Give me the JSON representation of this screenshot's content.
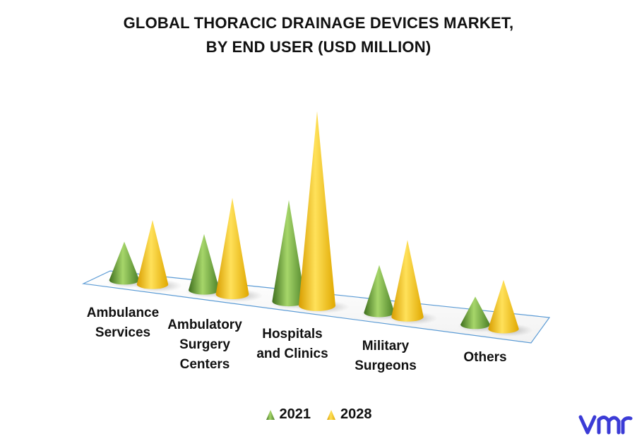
{
  "title_lines": [
    "GLOBAL THORACIC DRAINAGE DEVICES MARKET,",
    "BY END USER (USD MILLION)"
  ],
  "chart_data": {
    "type": "bar",
    "style": "3d-cones",
    "title": "GLOBAL THORACIC DRAINAGE DEVICES MARKET, BY END USER (USD MILLION)",
    "categories": [
      [
        "Ambulance",
        "Services"
      ],
      [
        "Ambulatory",
        "Surgery",
        "Centers"
      ],
      [
        "Hospitals",
        "and Clinics"
      ],
      [
        "Military",
        "Surgeons"
      ],
      [
        "Others"
      ]
    ],
    "series": [
      {
        "name": "2021",
        "color": "#5e9a34",
        "values": [
          55,
          80,
          145,
          68,
          40
        ]
      },
      {
        "name": "2028",
        "color": "#ffc000",
        "values": [
          92,
          138,
          278,
          110,
          70
        ]
      }
    ],
    "legend_position": "bottom",
    "grid": false
  },
  "logo": {
    "icon": "vmr-logo-icon",
    "color": "#3b3bd6"
  }
}
